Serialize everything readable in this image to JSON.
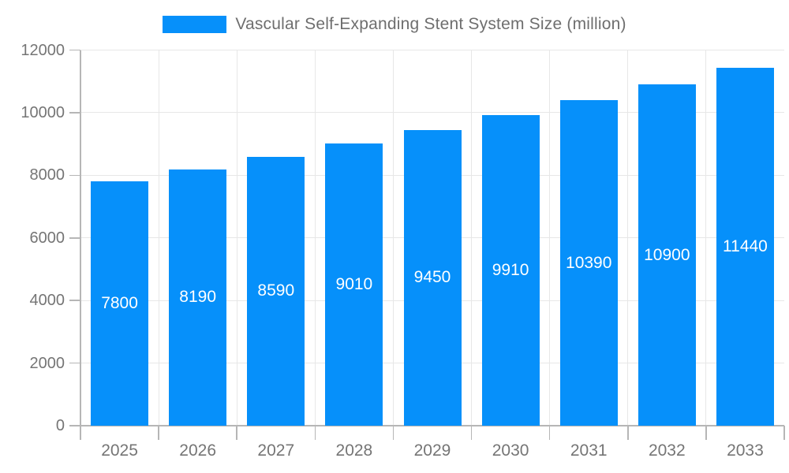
{
  "chart_data": {
    "type": "bar",
    "title": "Vascular Self-Expanding Stent System Size (million)",
    "categories": [
      "2025",
      "2026",
      "2027",
      "2028",
      "2029",
      "2030",
      "2031",
      "2032",
      "2033"
    ],
    "series": [
      {
        "name": "Vascular Self-Expanding Stent System Size (million)",
        "values": [
          7800,
          8190,
          8590,
          9010,
          9450,
          9910,
          10390,
          10900,
          11440
        ]
      }
    ],
    "xlabel": "",
    "ylabel": "",
    "ylim": [
      0,
      12000
    ],
    "yticks": [
      0,
      2000,
      4000,
      6000,
      8000,
      10000,
      12000
    ],
    "grid": true,
    "vertical_gridlines": true,
    "legend_position": "top",
    "bar_value_labels": true
  },
  "colors": {
    "bar": "#0690FA",
    "grid": "#e7e7e7",
    "axis": "#b6b6b6",
    "tick_label": "#757575",
    "legend_text": "#6e6e6e",
    "bar_label": "#ffffff",
    "background": "#ffffff"
  }
}
